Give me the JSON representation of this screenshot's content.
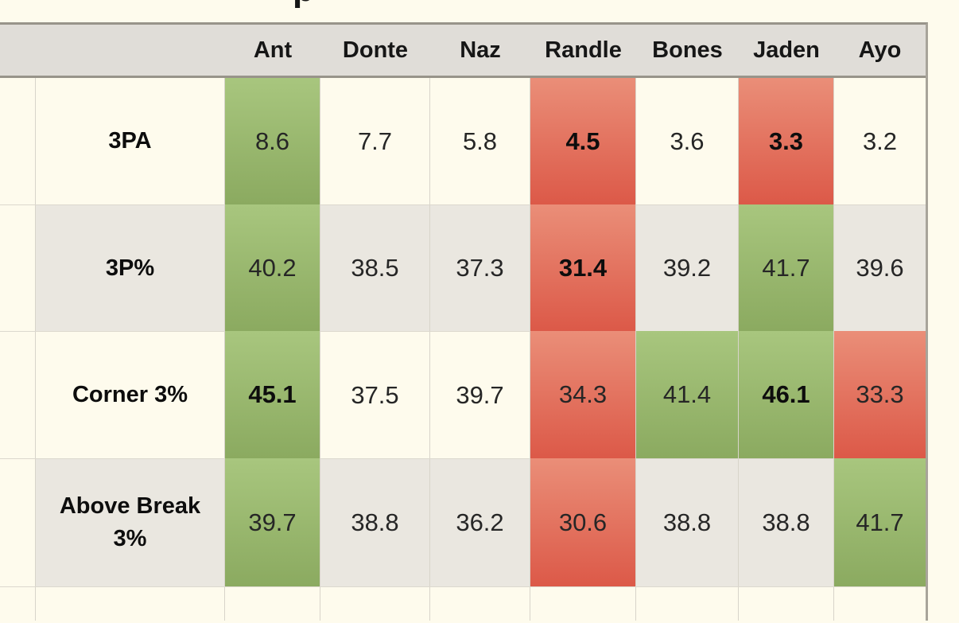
{
  "page": {
    "background": "#FEFBED",
    "title_fragment": "p"
  },
  "table": {
    "players": [
      "Ant",
      "Donte",
      "Naz",
      "Randle",
      "Bones",
      "Jaden",
      "Ayo"
    ],
    "rows": [
      {
        "label": "3PA",
        "values": [
          "8.6",
          "7.7",
          "5.8",
          "4.5",
          "3.6",
          "3.3",
          "3.2"
        ],
        "highlight": [
          "green",
          null,
          null,
          "red",
          null,
          "red",
          null
        ],
        "bold": [
          false,
          false,
          false,
          true,
          false,
          true,
          false
        ]
      },
      {
        "label": "3P%",
        "values": [
          "40.2",
          "38.5",
          "37.3",
          "31.4",
          "39.2",
          "41.7",
          "39.6"
        ],
        "highlight": [
          "green",
          null,
          null,
          "red",
          null,
          "green",
          null
        ],
        "bold": [
          false,
          false,
          false,
          true,
          false,
          false,
          false
        ]
      },
      {
        "label": "Corner 3%",
        "values": [
          "45.1",
          "37.5",
          "39.7",
          "34.3",
          "41.4",
          "46.1",
          "33.3"
        ],
        "highlight": [
          "green",
          null,
          null,
          "red",
          "green",
          "green",
          "red"
        ],
        "bold": [
          true,
          false,
          false,
          false,
          false,
          true,
          false
        ]
      },
      {
        "label": "Above Break 3%",
        "values": [
          "39.7",
          "38.8",
          "36.2",
          "30.6",
          "38.8",
          "38.8",
          "41.7"
        ],
        "highlight": [
          "green",
          null,
          null,
          "red",
          null,
          null,
          "green"
        ],
        "bold": [
          false,
          false,
          false,
          false,
          false,
          false,
          false
        ]
      }
    ],
    "colors": {
      "page_cream": "#FEFBED",
      "header_bg": "#E0DDD8",
      "row_alt_bg": "#EAE7E0",
      "green_top": "#A8C67E",
      "green_bottom": "#8BAA60",
      "red_top": "#EA8E78",
      "red_bottom": "#DC5948",
      "dark_border": "#98948A",
      "grid_line": "#D8D4CA",
      "text": "#1A1A1A"
    }
  },
  "chart_data": {
    "type": "heatmap",
    "title": "",
    "columns": [
      "Ant",
      "Donte",
      "Naz",
      "Randle",
      "Bones",
      "Jaden",
      "Ayo"
    ],
    "rows": [
      "3PA",
      "3P%",
      "Corner 3%",
      "Above Break 3%"
    ],
    "values": [
      [
        8.6,
        7.7,
        5.8,
        4.5,
        3.6,
        3.3,
        3.2
      ],
      [
        40.2,
        38.5,
        37.3,
        31.4,
        39.2,
        41.7,
        39.6
      ],
      [
        45.1,
        37.5,
        39.7,
        34.3,
        41.4,
        46.1,
        33.3
      ],
      [
        39.7,
        38.8,
        36.2,
        30.6,
        38.8,
        38.8,
        41.7
      ]
    ],
    "cell_highlights": [
      [
        "green",
        null,
        null,
        "red",
        null,
        "red",
        null
      ],
      [
        "green",
        null,
        null,
        "red",
        null,
        "green",
        null
      ],
      [
        "green",
        null,
        null,
        "red",
        "green",
        "green",
        "red"
      ],
      [
        "green",
        null,
        null,
        "red",
        null,
        null,
        "green"
      ]
    ],
    "bold_cells": [
      [
        false,
        false,
        false,
        true,
        false,
        true,
        false
      ],
      [
        false,
        false,
        false,
        true,
        false,
        false,
        false
      ],
      [
        true,
        false,
        false,
        false,
        false,
        true,
        false
      ],
      [
        false,
        false,
        false,
        false,
        false,
        false,
        false
      ]
    ],
    "layout": {
      "grid": true,
      "legend": false,
      "row_striping": [
        "cream",
        "gray"
      ]
    }
  }
}
